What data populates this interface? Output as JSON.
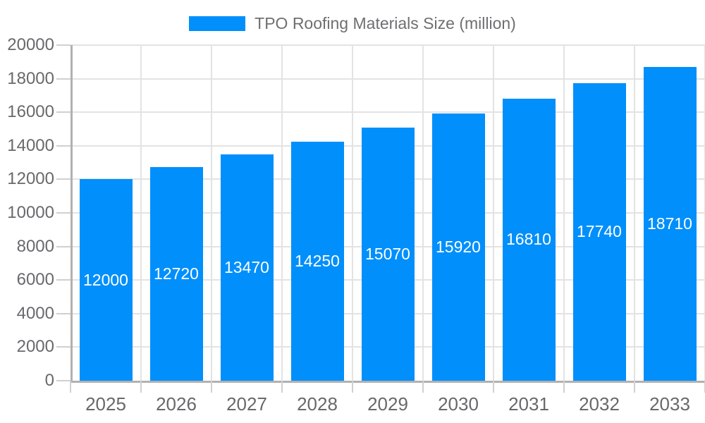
{
  "colors": {
    "bar": "#008FFB",
    "grid": "#e3e3e3",
    "tick": "#d0d0d0",
    "axis": "#b1b1b1",
    "axis_label_text": "#67696b",
    "legend_text": "#6e6f71",
    "data_label_text": "#ffffff",
    "background": "#ffffff"
  },
  "chart_data": {
    "type": "bar",
    "title": "",
    "legend": "TPO Roofing Materials Size (million)",
    "legend_position": "top-center",
    "categories": [
      "2025",
      "2026",
      "2027",
      "2028",
      "2029",
      "2030",
      "2031",
      "2032",
      "2033"
    ],
    "values": [
      12000,
      12720,
      13470,
      14250,
      15070,
      15920,
      16810,
      17740,
      18710
    ],
    "data_labels": [
      12000,
      12720,
      13470,
      14250,
      15070,
      15920,
      16810,
      17740,
      18710
    ],
    "xlabel": "",
    "ylabel": "",
    "ylim": [
      0,
      20000
    ],
    "ytick_step": 2000,
    "yticks": [
      0,
      2000,
      4000,
      6000,
      8000,
      10000,
      12000,
      14000,
      16000,
      18000,
      20000
    ],
    "grid": true,
    "data_labels_position": "center-inside",
    "bar_width_fraction": 0.75
  }
}
